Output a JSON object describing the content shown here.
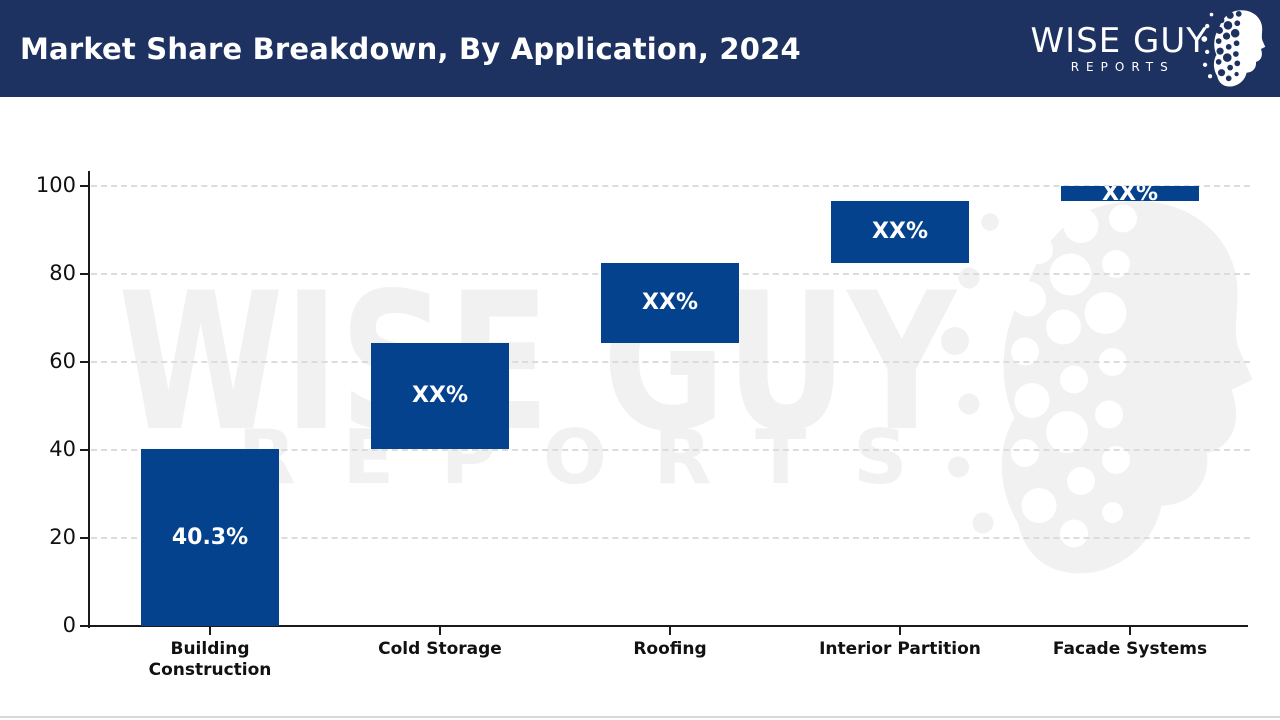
{
  "header": {
    "title": "Market Share Breakdown, By Application, 2024",
    "logo": {
      "line1": "WISE GUY",
      "line2": "REPORTS"
    }
  },
  "watermark": {
    "line1": "WISE GUY",
    "line2": "REPORTS"
  },
  "chart_data": {
    "type": "bar",
    "subtype": "waterfall",
    "title": "Market Share Breakdown, By Application, 2024",
    "categories": [
      "Building\nConstruction",
      "Cold Storage",
      "Roofing",
      "Interior Partition",
      "Facade Systems"
    ],
    "segments": [
      {
        "category": "Building\nConstruction",
        "start": 0,
        "end": 40.3,
        "label": "40.3%"
      },
      {
        "category": "Cold Storage",
        "start": 40.3,
        "end": 64.3,
        "label": "XX%"
      },
      {
        "category": "Roofing",
        "start": 64.3,
        "end": 82.6,
        "label": "XX%"
      },
      {
        "category": "Interior Partition",
        "start": 82.6,
        "end": 96.6,
        "label": "XX%"
      },
      {
        "category": "Facade Systems",
        "start": 96.6,
        "end": 100,
        "label": "XX%"
      }
    ],
    "yticks": [
      0,
      20,
      40,
      60,
      80,
      100
    ],
    "ylim": [
      0,
      103.5
    ],
    "xlabel": "",
    "ylabel": "",
    "grid": "horizontal-dashed",
    "legend": "none",
    "bar_color": "#04428e",
    "bar_label_color": "#ffffff",
    "axis_color": "#1a1a1a",
    "gridline_color": "#dcdcdc"
  },
  "colors": {
    "header_bg": "#1e3262",
    "background": "#ffffff",
    "watermark": "#f1f1f1",
    "footer_line": "#d8d8d8"
  }
}
